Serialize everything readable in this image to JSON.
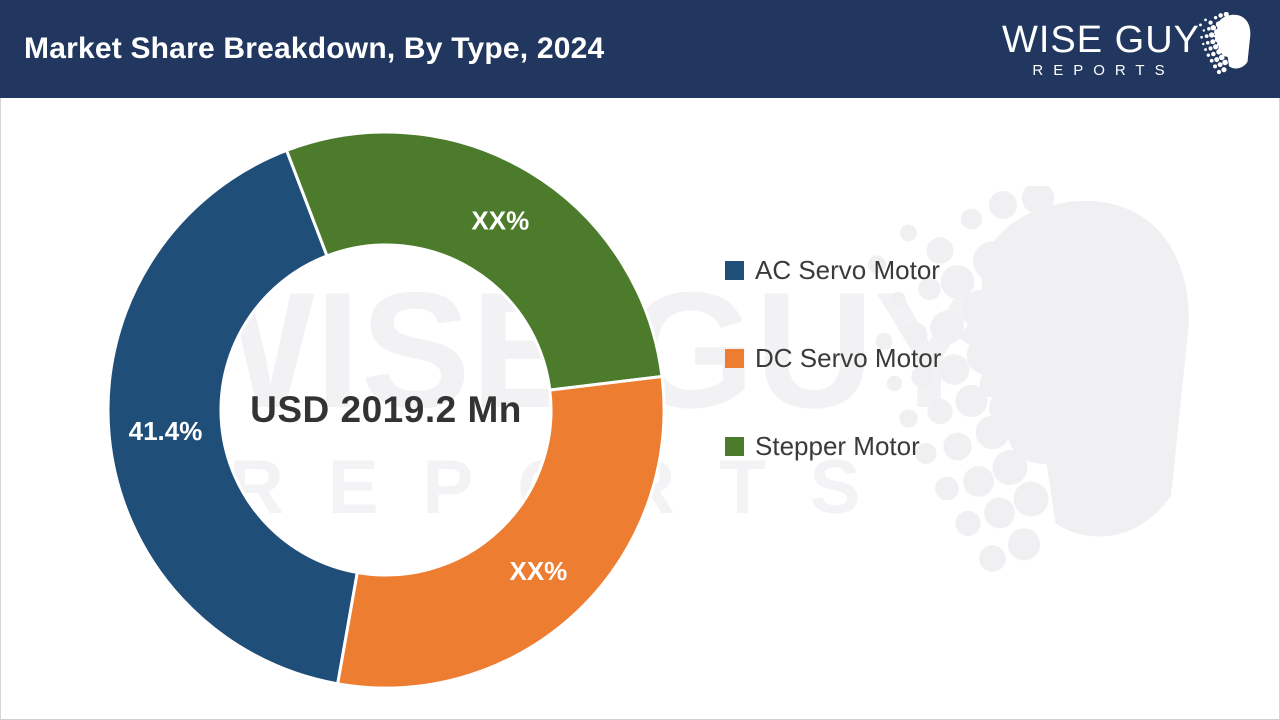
{
  "header": {
    "title": "Market Share Breakdown, By Type, 2024",
    "logo": {
      "line1": "WISE GUY",
      "line2": "REPORTS"
    }
  },
  "watermark": {
    "line1": "WISE GUY",
    "line2": "REPORTS"
  },
  "chart_data": {
    "type": "donut",
    "title": "Market Share Breakdown, By Type, 2024",
    "center_label": "USD 2019.2 Mn",
    "rotation_deg": 190,
    "legend_position": "right",
    "slices": [
      {
        "name": "AC Servo Motor",
        "value": 41.4,
        "label": "41.4%",
        "color": "#1F4E79"
      },
      {
        "name": "Stepper Motor",
        "value": 28.9,
        "label": "XX%",
        "color": "#4C7C2B"
      },
      {
        "name": "DC Servo Motor",
        "value": 29.7,
        "label": "XX%",
        "color": "#ED7D31"
      }
    ]
  },
  "legend": {
    "items": [
      {
        "label": "AC Servo Motor",
        "color": "#1F4E79"
      },
      {
        "label": "DC Servo Motor",
        "color": "#ED7D31"
      },
      {
        "label": "Stepper Motor",
        "color": "#4C7C2B"
      }
    ]
  },
  "colors": {
    "header_bg": "#21375F",
    "blue": "#1F4E79",
    "orange": "#ED7D31",
    "green": "#4C7C2B",
    "center_text": "#333333",
    "watermark": "#F2F2F4"
  }
}
